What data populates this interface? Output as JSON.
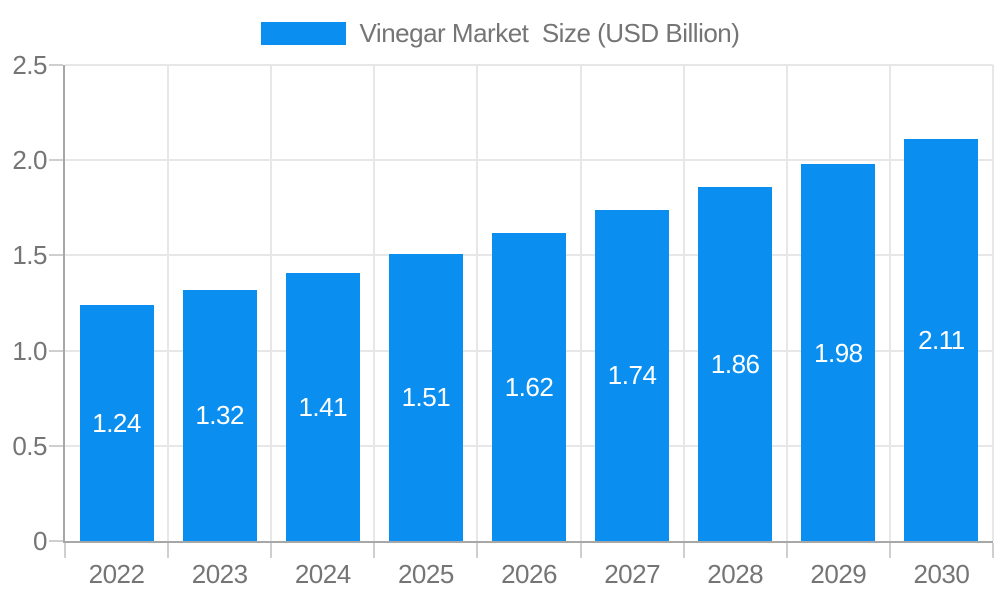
{
  "legend": {
    "label": "Vinegar Market  Size (USD Billion)"
  },
  "chart_data": {
    "type": "bar",
    "title": "Vinegar Market  Size (USD Billion)",
    "categories": [
      "2022",
      "2023",
      "2024",
      "2025",
      "2026",
      "2027",
      "2028",
      "2029",
      "2030"
    ],
    "values": [
      1.24,
      1.32,
      1.41,
      1.51,
      1.62,
      1.74,
      1.86,
      1.98,
      2.11
    ],
    "value_labels": [
      "1.24",
      "1.32",
      "1.41",
      "1.51",
      "1.62",
      "1.74",
      "1.86",
      "1.98",
      "2.11"
    ],
    "series_name": "Vinegar Market  Size (USD Billion)",
    "xlabel": "",
    "ylabel": "",
    "ylim": [
      0,
      2.5
    ],
    "yticks": [
      0,
      0.5,
      1.0,
      1.5,
      2.0,
      2.5
    ],
    "ytick_labels": [
      "0",
      "0.5",
      "1.0",
      "1.5",
      "2.0",
      "2.5"
    ],
    "grid": true,
    "legend_position": "top"
  },
  "colors": {
    "bar": "#0a8ff1",
    "value_label": "#ffffff",
    "text": "#757575",
    "axis": "#a7a7a7",
    "grid": "#e7e7e7",
    "tick": "#cfcfcf",
    "background": "#ffffff"
  }
}
